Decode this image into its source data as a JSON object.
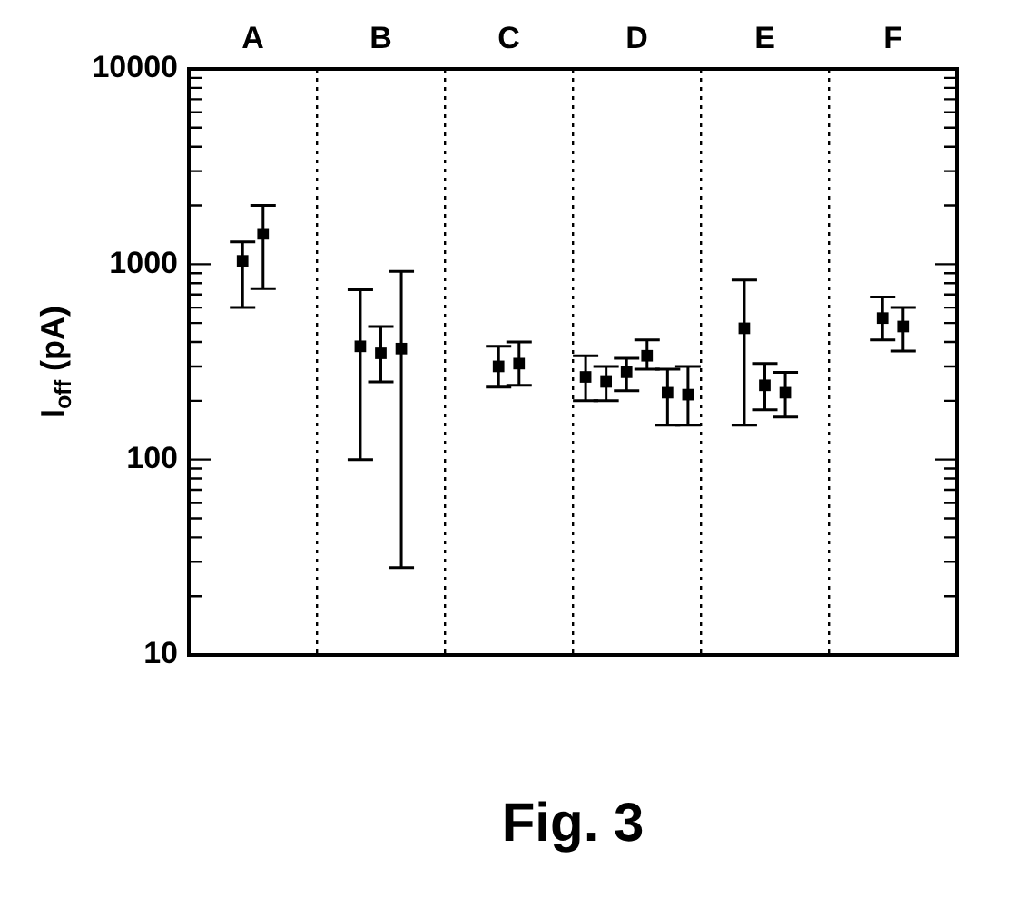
{
  "chart_data": {
    "type": "scatter",
    "title": "Fig. 3",
    "ylabel": "I$_{off}$ (pA)",
    "log": "y",
    "grid": "x",
    "legend": false,
    "marker": "square",
    "categories": [
      "A",
      "B",
      "C",
      "D",
      "E",
      "F"
    ],
    "ylim": [
      10,
      10000
    ],
    "yticks": [
      10,
      100,
      1000,
      10000
    ],
    "series": [
      {
        "color": "#000000",
        "values": [
          1040,
          380,
          300,
          265,
          470,
          530
        ],
        "errors": [
          [
            600,
            1300
          ],
          [
            100,
            740
          ],
          [
            235,
            380
          ],
          [
            200,
            340
          ],
          [
            150,
            830
          ],
          [
            410,
            680
          ]
        ]
      },
      {
        "color": "#000000",
        "values": [
          1430,
          350,
          310,
          250,
          240,
          480
        ],
        "errors": [
          [
            750,
            2000
          ],
          [
            250,
            480
          ],
          [
            240,
            400
          ],
          [
            200,
            300
          ],
          [
            180,
            310
          ],
          [
            360,
            600
          ]
        ]
      },
      {
        "color": "#000000",
        "values": [
          null,
          370,
          null,
          280,
          220,
          null
        ],
        "errors": [
          null,
          [
            28,
            920
          ],
          null,
          [
            225,
            330
          ],
          [
            165,
            280
          ],
          null
        ]
      },
      {
        "color": "#000000",
        "values": [
          null,
          null,
          null,
          340,
          null,
          null
        ],
        "errors": [
          null,
          null,
          null,
          [
            290,
            410
          ],
          null,
          null
        ]
      },
      {
        "color": "#000000",
        "values": [
          null,
          null,
          null,
          220,
          null,
          null
        ],
        "errors": [
          null,
          null,
          null,
          [
            150,
            290
          ],
          null,
          null
        ]
      },
      {
        "color": "#000000",
        "values": [
          null,
          null,
          null,
          215,
          null,
          null
        ],
        "errors": [
          null,
          null,
          null,
          [
            150,
            300
          ],
          null,
          null
        ]
      }
    ]
  }
}
